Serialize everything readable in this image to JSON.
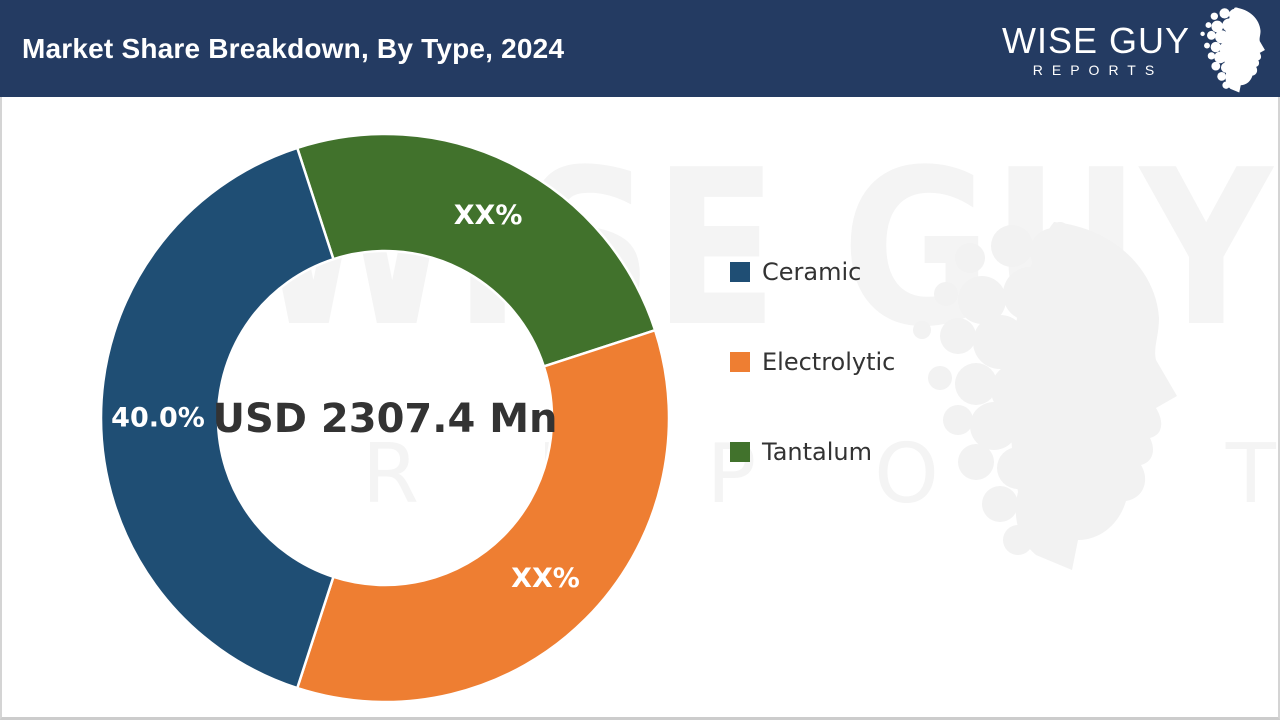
{
  "header": {
    "title": "Market Share Breakdown, By Type, 2024",
    "logo": {
      "line1": "WISE GUY",
      "line2": "REPORTS"
    }
  },
  "watermark": {
    "line1": "WISE GUY",
    "line2": "REPORTS"
  },
  "chart_data": {
    "type": "pie",
    "subtype": "donut",
    "title": "Market Share Breakdown, By Type, 2024",
    "center_label": "USD 2307.4 Mn",
    "start_angle_deg_from_north": -18,
    "direction": "clockwise",
    "segments": [
      {
        "name": "Tantalum",
        "value_pct": 25,
        "display_label": "XX%",
        "color": "#41722C"
      },
      {
        "name": "Electrolytic",
        "value_pct": 35,
        "display_label": "XX%",
        "color": "#EE7E32"
      },
      {
        "name": "Ceramic",
        "value_pct": 40,
        "display_label": "40.0%",
        "color": "#1F4E74"
      }
    ],
    "legend": [
      {
        "label": "Ceramic",
        "color": "#1F4E74"
      },
      {
        "label": "Electrolytic",
        "color": "#EE7E32"
      },
      {
        "label": "Tantalum",
        "color": "#41722C"
      }
    ],
    "legend_position": "right"
  },
  "colors": {
    "header_bg": "#243B62",
    "watermark": "#F4F4F4",
    "text_dark": "#333333",
    "separator": "#FFFFFF"
  }
}
